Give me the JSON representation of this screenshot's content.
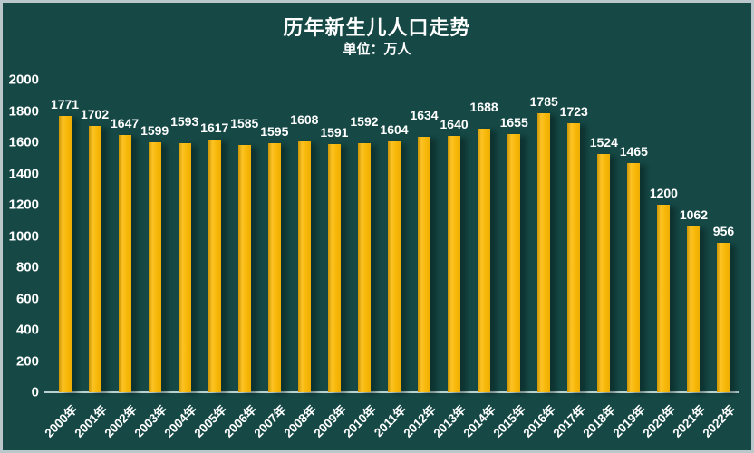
{
  "chart_data": {
    "type": "bar",
    "title": "历年新生儿人口走势",
    "subtitle": "单位：万人",
    "categories": [
      "2000年",
      "2001年",
      "2002年",
      "2003年",
      "2004年",
      "2005年",
      "2006年",
      "2007年",
      "2008年",
      "2009年",
      "2010年",
      "2011年",
      "2012年",
      "2013年",
      "2014年",
      "2015年",
      "2016年",
      "2017年",
      "2018年",
      "2019年",
      "2020年",
      "2021年",
      "2022年"
    ],
    "values": [
      1771,
      1702,
      1647,
      1599,
      1593,
      1617,
      1585,
      1595,
      1608,
      1591,
      1592,
      1604,
      1634,
      1640,
      1688,
      1655,
      1785,
      1723,
      1524,
      1465,
      1200,
      1062,
      956
    ],
    "ylabel": "",
    "xlabel": "",
    "ylim": [
      0,
      2000
    ],
    "yticks": [
      0,
      200,
      400,
      600,
      800,
      1000,
      1200,
      1400,
      1600,
      1800,
      2000
    ],
    "grid": false,
    "legend": "none",
    "data_labels": true,
    "colors": {
      "background": "#164946",
      "bar": "#fcba06",
      "text": "#ffffff",
      "axis_line": "#bdd0d0",
      "frame_border": "#bac8cb"
    }
  }
}
